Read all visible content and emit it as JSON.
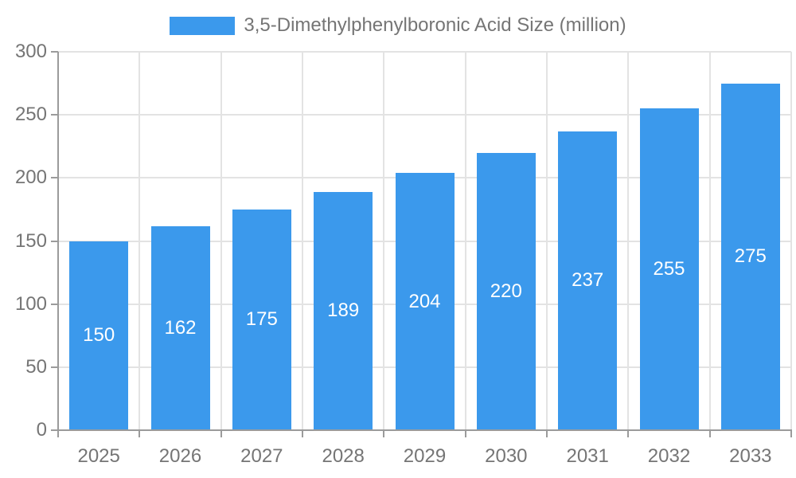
{
  "legend": {
    "label": "3,5-Dimethylphenylboronic Acid Size (million)"
  },
  "chart_data": {
    "type": "bar",
    "title": "3,5-Dimethylphenylboronic Acid Size (million)",
    "categories": [
      "2025",
      "2026",
      "2027",
      "2028",
      "2029",
      "2030",
      "2031",
      "2032",
      "2033"
    ],
    "values": [
      150,
      162,
      175,
      189,
      204,
      220,
      237,
      255,
      275
    ],
    "xlabel": "",
    "ylabel": "",
    "ylim": [
      0,
      300
    ],
    "yticks": [
      0,
      50,
      100,
      150,
      200,
      250,
      300
    ],
    "grid": true,
    "legend_position": "top",
    "bar_labels_inside": true
  },
  "colors": {
    "bar": "#3B99EC",
    "bar_label": "#FFFFFF",
    "axis": "#9B9B9B",
    "grid": "#E3E3E3",
    "tick_text": "#757575",
    "background": "#FFFFFF"
  }
}
